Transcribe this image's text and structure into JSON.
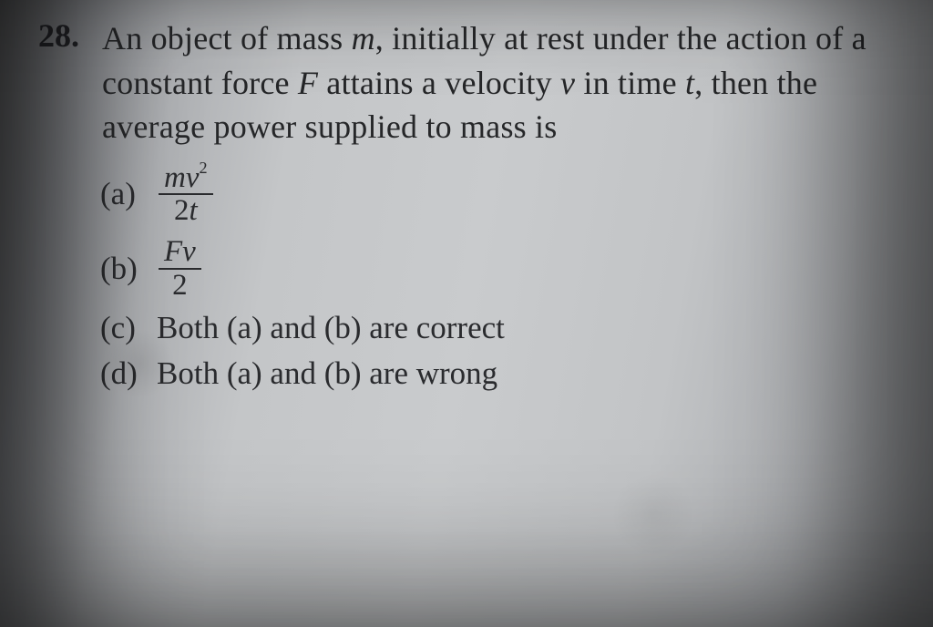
{
  "question": {
    "number": "28.",
    "text_parts": {
      "p1": "An object of mass ",
      "m": "m",
      "p2": ", initially at rest under the action of a constant force ",
      "F": "F",
      "p3": " attains a velocity ",
      "v": "v",
      "p4": " in time ",
      "t": "t",
      "p5": ", then the average power supplied to mass is"
    }
  },
  "options": {
    "a": {
      "label": "(a)",
      "frac_num_left": "mv",
      "frac_num_exp": "2",
      "frac_den_left": "2",
      "frac_den_right": "t"
    },
    "b": {
      "label": "(b)",
      "frac_num": "Fv",
      "frac_den": "2"
    },
    "c": {
      "label": "(c)",
      "text": "Both (a) and (b) are correct"
    },
    "d": {
      "label": "(d)",
      "text": "Both (a) and (b) are wrong"
    }
  },
  "style": {
    "text_color": "#262729",
    "rule_color": "#2a2b2e"
  }
}
